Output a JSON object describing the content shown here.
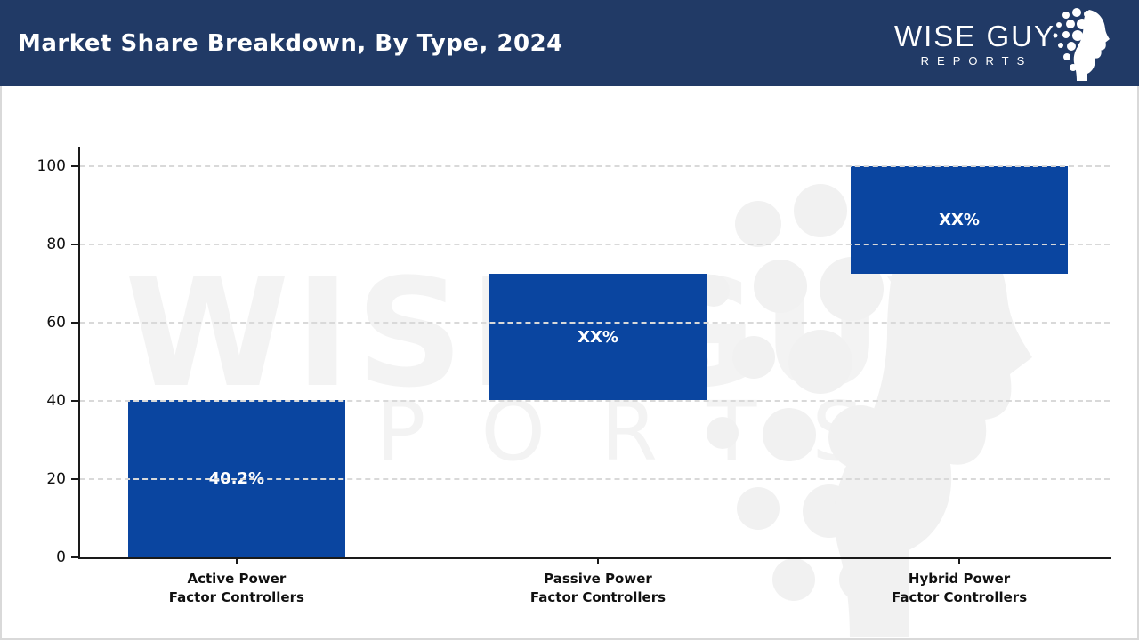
{
  "header": {
    "title": "Market Share Breakdown, By Type, 2024",
    "logo": {
      "wordmark": "WISE GUY",
      "subtext": "REPORTS"
    }
  },
  "watermark": {
    "wordmark": "WISE GUY",
    "subtext": "REPORTS"
  },
  "colors": {
    "header_bg": "#213a66",
    "bar": "#0a45a0",
    "bar_label": "#ffffff",
    "gridline": "#d9d9d9",
    "axis": "#1a1a1a",
    "page_border": "#d9d9d9",
    "watermark": "#f3f3f3"
  },
  "chart_data": {
    "type": "bar",
    "subtype": "stacked-waterfall-floating-bars",
    "title": "Market Share Breakdown, By Type, 2024",
    "xlabel": "",
    "ylabel": "",
    "ylim": [
      0,
      100
    ],
    "yticks": [
      0,
      20,
      40,
      60,
      80,
      100
    ],
    "grid": "horizontal-dashed-over-bars",
    "legend": "none",
    "categories": [
      "Active Power Factor Controllers",
      "Passive Power Factor Controllers",
      "Hybrid Power Factor Controllers"
    ],
    "categories_lines": [
      [
        "Active Power",
        "Factor Controllers"
      ],
      [
        "Passive Power",
        "Factor Controllers"
      ],
      [
        "Hybrid Power",
        "Factor Controllers"
      ]
    ],
    "segments": [
      {
        "category": "Active Power Factor Controllers",
        "start": 0,
        "end": 40.2,
        "span": 40.2,
        "label": "40.2%"
      },
      {
        "category": "Passive Power Factor Controllers",
        "start": 40.2,
        "end": 72.5,
        "span": 32.3,
        "label": "XX%"
      },
      {
        "category": "Hybrid Power Factor Controllers",
        "start": 72.5,
        "end": 100,
        "span": 27.5,
        "label": "XX%"
      }
    ]
  }
}
